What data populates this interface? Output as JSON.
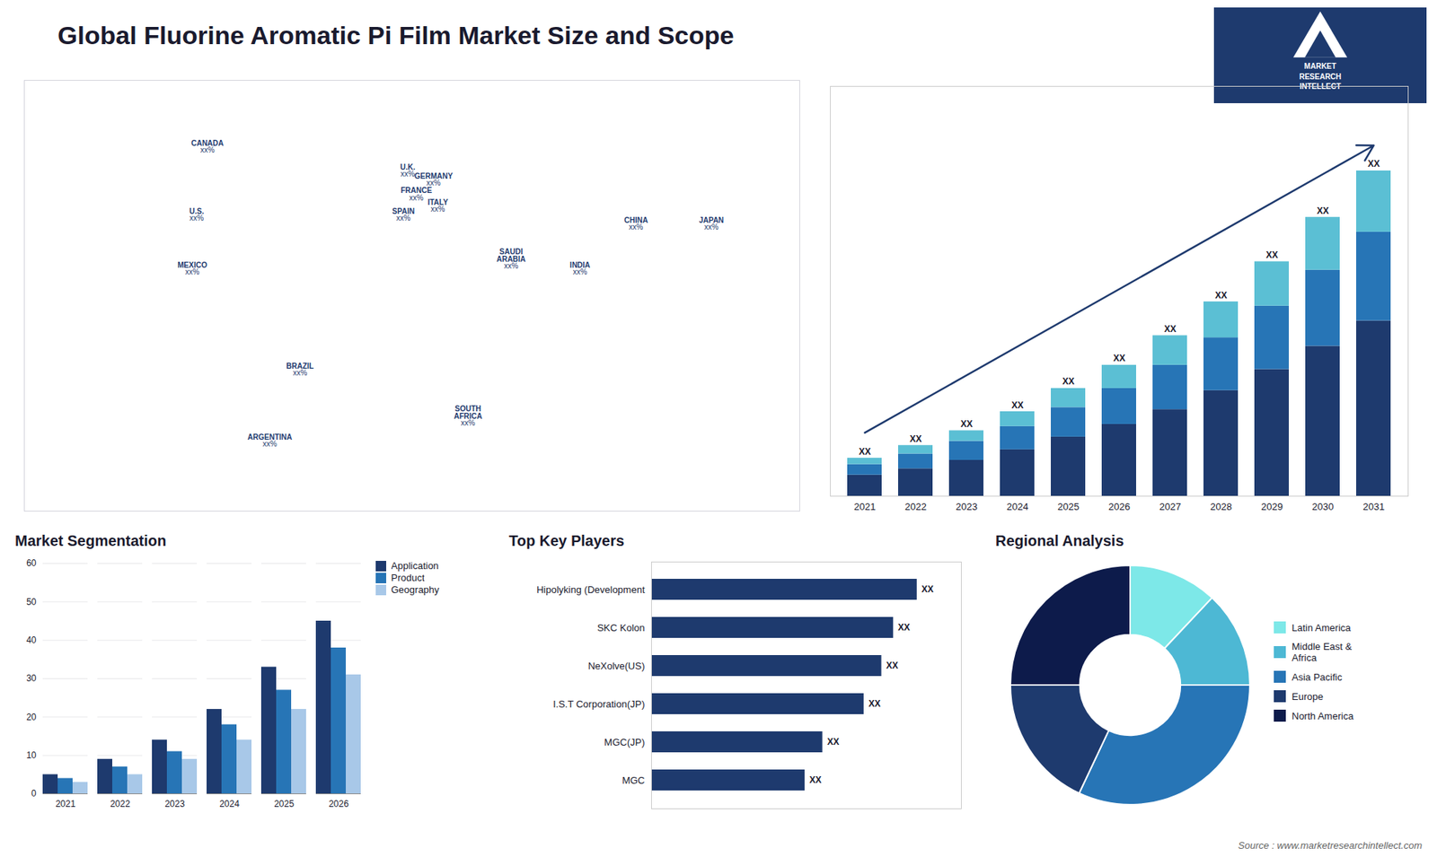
{
  "title": "Global Fluorine Aromatic Pi Film Market Size and Scope",
  "caption": "Source : www.marketresearchintellect.com",
  "annotations": [
    {
      "text": "MARKET\nRESEARCH\nINTELLECT"
    }
  ],
  "chart_data": [
    {
      "type": "map",
      "xlim": [
        -180,
        180
      ],
      "ylim": [
        -60,
        85
      ],
      "tick_labels": false,
      "color": "#1e3a6e",
      "annotations": [
        {
          "text": "U.S.",
          "label": "xx%",
          "x": -100,
          "y": 40
        },
        {
          "text": "CANADA",
          "label": "xx%",
          "x": -95,
          "y": 63
        },
        {
          "text": "MEXICO",
          "label": "xx%",
          "x": -102,
          "y": 22
        },
        {
          "text": "BRAZIL",
          "label": "xx%",
          "x": -52,
          "y": -12
        },
        {
          "text": "ARGENTINA",
          "label": "xx%",
          "x": -66,
          "y": -36
        },
        {
          "text": "U.K.",
          "label": "xx%",
          "x": -2,
          "y": 55
        },
        {
          "text": "FRANCE",
          "label": "xx%",
          "x": 2,
          "y": 47
        },
        {
          "text": "SPAIN",
          "label": "xx%",
          "x": -4,
          "y": 40
        },
        {
          "text": "GERMANY",
          "label": "xx%",
          "x": 10,
          "y": 52
        },
        {
          "text": "ITALY",
          "label": "xx%",
          "x": 12,
          "y": 43
        },
        {
          "text": "SAUDI\nARABIA",
          "label": "xx%",
          "x": 46,
          "y": 24
        },
        {
          "text": "SOUTH\nAFRICA",
          "label": "xx%",
          "x": 26,
          "y": -29
        },
        {
          "text": "CHINA",
          "label": "xx%",
          "x": 104,
          "y": 37
        },
        {
          "text": "JAPAN",
          "label": "xx%",
          "x": 139,
          "y": 37
        },
        {
          "text": "INDIA",
          "label": "xx%",
          "x": 78,
          "y": 22
        }
      ]
    },
    {
      "type": "bar",
      "stacked": true,
      "categories": [
        "2021",
        "2022",
        "2023",
        "2024",
        "2025",
        "2026",
        "2027",
        "2028",
        "2029",
        "2030",
        "2031"
      ],
      "series": [
        {
          "color": "#1e3a6e",
          "values": [
            1.0,
            1.3,
            1.7,
            2.2,
            2.8,
            3.4,
            4.1,
            5.0,
            6.0,
            7.1,
            8.3
          ]
        },
        {
          "color": "#2775b6",
          "values": [
            0.5,
            0.7,
            0.9,
            1.1,
            1.4,
            1.7,
            2.1,
            2.5,
            3.0,
            3.6,
            4.2
          ]
        },
        {
          "color": "#5bbfd4",
          "values": [
            0.3,
            0.4,
            0.5,
            0.7,
            0.9,
            1.1,
            1.4,
            1.7,
            2.1,
            2.5,
            2.9
          ]
        }
      ],
      "value_labels": [
        "XX",
        "XX",
        "XX",
        "XX",
        "XX",
        "XX",
        "XX",
        "XX",
        "XX",
        "XX",
        "XX"
      ],
      "ylim": [
        0,
        19.4
      ],
      "tick_labels": "x",
      "annotations": [
        {
          "type": "arrow",
          "color": "#1e3a6e"
        }
      ]
    },
    {
      "type": "bar",
      "title": "Market Segmentation",
      "categories": [
        "2021",
        "2022",
        "2023",
        "2024",
        "2025",
        "2026"
      ],
      "series": [
        {
          "name": "Application",
          "color": "#1e3a6e",
          "values": [
            5,
            9,
            14,
            22,
            33,
            45
          ]
        },
        {
          "name": "Product",
          "color": "#2775b6",
          "values": [
            4,
            7,
            11,
            18,
            27,
            38
          ]
        },
        {
          "name": "Geography",
          "color": "#a8c8e8",
          "values": [
            3,
            5,
            9,
            14,
            22,
            31
          ]
        }
      ],
      "ylim": [
        0,
        60
      ],
      "yticks": [
        0,
        10,
        20,
        30,
        40,
        50,
        60
      ],
      "grid": true,
      "legend": "right"
    },
    {
      "type": "bar",
      "orientation": "horizontal",
      "title": "Top Key Players",
      "categories": [
        "Hipolyking (Development",
        "SKC Kolon",
        "NeXolve(US)",
        "I.S.T Corporation(JP)",
        "MGC(JP)",
        "MGC"
      ],
      "values": [
        9.0,
        8.2,
        7.8,
        7.2,
        5.8,
        5.2
      ],
      "value_labels": [
        "XX",
        "XX",
        "XX",
        "XX",
        "XX",
        "XX"
      ],
      "color": "#1e3a6e",
      "xlim": [
        0,
        10.5
      ],
      "tick_labels": "y"
    },
    {
      "type": "pie",
      "title": "Regional Analysis",
      "categories": [
        "Latin America",
        "Middle East &\nAfrica",
        "Asia Pacific",
        "Europe",
        "North America"
      ],
      "values": [
        12,
        13,
        32,
        18,
        25
      ],
      "colors": [
        "#7de8e8",
        "#4db8d4",
        "#2775b6",
        "#1e3a6e",
        "#0d1b4b"
      ],
      "legend": "right"
    }
  ]
}
